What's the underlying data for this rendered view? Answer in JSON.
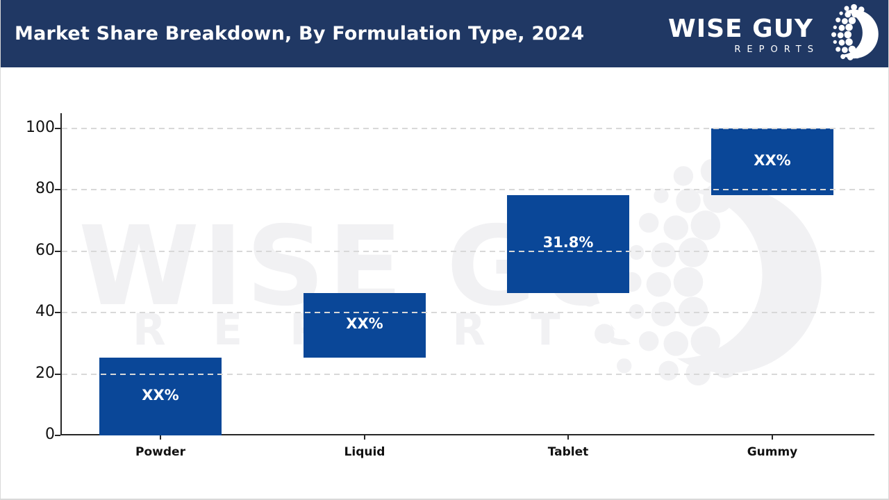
{
  "header": {
    "title": "Market Share Breakdown, By Formulation Type, 2024",
    "logo": {
      "line1": "WISE GUY",
      "line2": "REPORTS"
    }
  },
  "watermark": {
    "line1": "WISE GUY",
    "line2": "REPORTS"
  },
  "colors": {
    "header_bg": "#203864",
    "bar": "#0a4798",
    "gridline": "#d8d8d8",
    "axis": "#262626",
    "bar_label_text": "#ffffff",
    "watermark": "#f1f1f3"
  },
  "chart_data": {
    "type": "bar",
    "subtype": "floating-waterfall",
    "title": "Market Share Breakdown, By Formulation Type, 2024",
    "categories": [
      "Powder",
      "Liquid",
      "Tablet",
      "Gummy"
    ],
    "bars": [
      {
        "category": "Powder",
        "start": 0,
        "end": 25.4,
        "segment": 25.4,
        "label": "XX%"
      },
      {
        "category": "Liquid",
        "start": 25.4,
        "end": 46.4,
        "segment": 21.0,
        "label": "XX%"
      },
      {
        "category": "Tablet",
        "start": 46.4,
        "end": 78.2,
        "segment": 31.8,
        "label": "31.8%"
      },
      {
        "category": "Gummy",
        "start": 78.2,
        "end": 100,
        "segment": 21.8,
        "label": "XX%"
      }
    ],
    "y_ticks": [
      0,
      20,
      40,
      60,
      80,
      100
    ],
    "ylim": [
      0,
      104.8
    ],
    "xlabel": "",
    "ylabel": "",
    "grid": "horizontal-dashed",
    "legend": "none"
  }
}
